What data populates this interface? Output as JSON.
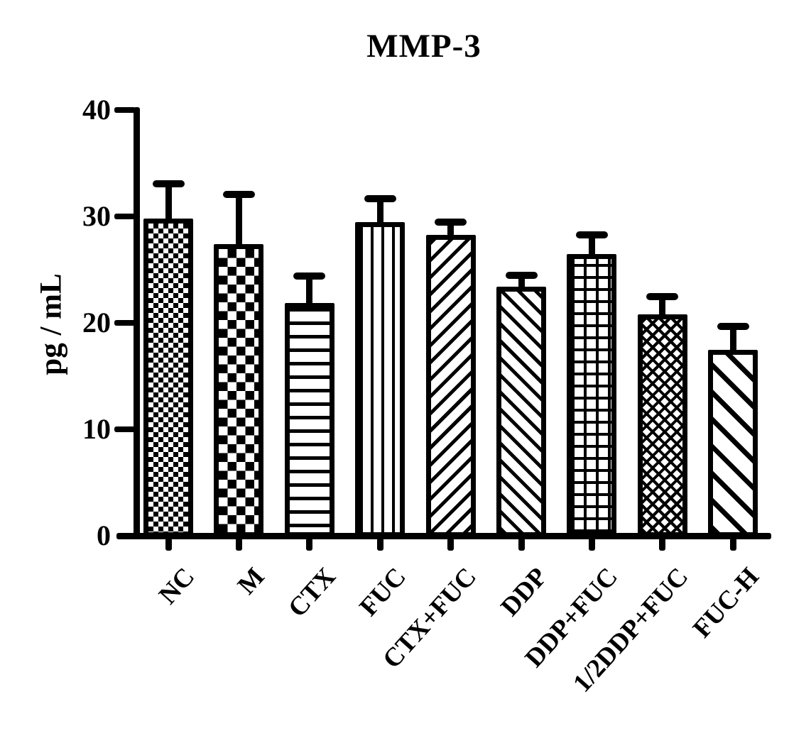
{
  "figure": {
    "title": "MMP-3",
    "ylabel": "pg / mL"
  },
  "chart_data": {
    "type": "bar",
    "title": "MMP-3",
    "xlabel": "",
    "ylabel": "pg / mL",
    "categories": [
      "NC",
      "M",
      "CTX",
      "FUC",
      "CTX+FUC",
      "DDP",
      "DDP+FUC",
      "1/2DDP+FUC",
      "FUC-H"
    ],
    "values": [
      29.8,
      27.4,
      21.9,
      29.5,
      28.3,
      23.4,
      26.5,
      20.8,
      17.5
    ],
    "errors_plus": [
      3.3,
      4.7,
      2.5,
      2.2,
      1.2,
      1.1,
      1.8,
      1.7,
      2.2
    ],
    "error_type": "SD, upper only",
    "yticks": [
      0,
      10,
      20,
      30,
      40
    ],
    "ylim": [
      0,
      40
    ],
    "grid": "off",
    "legend": "none",
    "bar_fill_patterns": [
      "checker-fine",
      "checker-coarse",
      "hlines",
      "vlines",
      "diag-forward",
      "diag-back",
      "grid",
      "crosshatch",
      "diag-back-wide"
    ],
    "bar_color": "#000000",
    "background_color": "#ffffff"
  }
}
